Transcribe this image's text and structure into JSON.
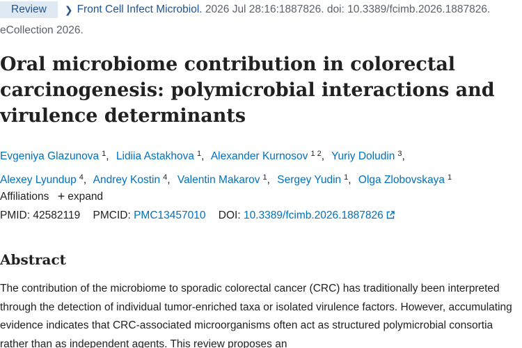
{
  "citation": {
    "badge": "Review",
    "journal": "Front Cell Infect Microbiol.",
    "details": " 2026 Jul 28:16:1887826. doi: 10.3389/fcimb.2026.1887826.",
    "ecollection": "eCollection 2026."
  },
  "title": "Oral microbiome contribution in colorectal carcinogenesis: polymicrobial interactions and virulence determinants",
  "authors": [
    {
      "name": "Evgeniya Glazunova",
      "aff": "1"
    },
    {
      "name": "Lidiia Astakhova",
      "aff": "1"
    },
    {
      "name": "Alexander Kurnosov",
      "aff": "1 2"
    },
    {
      "name": "Yuriy Doludin",
      "aff": "3"
    },
    {
      "name": "Alexey Lyundup",
      "aff": "4"
    },
    {
      "name": "Andrey Kostin",
      "aff": "4"
    },
    {
      "name": "Valentin Makarov",
      "aff": "1"
    },
    {
      "name": "Sergey Yudin",
      "aff": "1"
    },
    {
      "name": "Olga Zlobovskaya",
      "aff": "1"
    }
  ],
  "affiliations": {
    "label": "Affiliations",
    "expand": "expand"
  },
  "identifiers": {
    "pmid_label": "PMID:",
    "pmid": "42582119",
    "pmcid_label": "PMCID:",
    "pmcid": "PMC13457010",
    "doi_label": "DOI:",
    "doi": "10.3389/fcimb.2026.1887826"
  },
  "abstract": {
    "heading": "Abstract",
    "text": "The contribution of the microbiome to sporadic colorectal cancer (CRC) has traditionally been interpreted through the detection of individual tumor-enriched taxa or isolated virulence factors. However, accumulating evidence indicates that CRC-associated microorganisms often act as structured polymicrobial consortia rather than as independent agents. This review proposes an"
  },
  "colors": {
    "link": "#0071bc",
    "badge_bg": "#dfe9f3",
    "text": "#212121"
  }
}
